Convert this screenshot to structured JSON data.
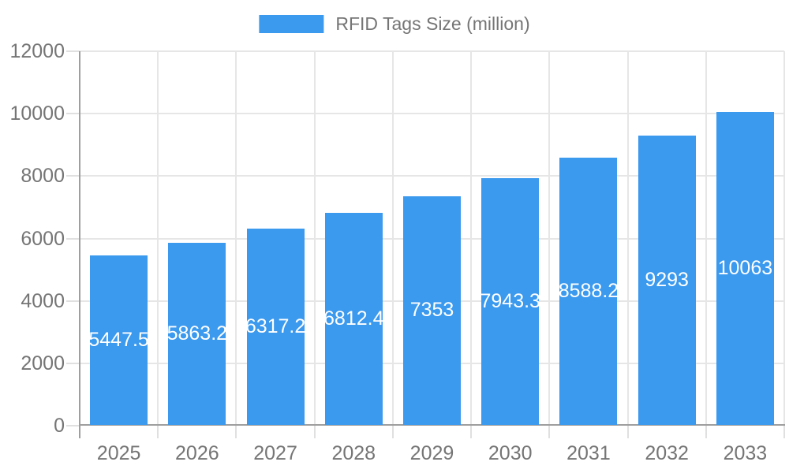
{
  "chart_data": {
    "type": "bar",
    "title": "RFID Tags Size (million)",
    "categories": [
      "2025",
      "2026",
      "2027",
      "2028",
      "2029",
      "2030",
      "2031",
      "2032",
      "2033"
    ],
    "series": [
      {
        "name": "RFID Tags Size (million)",
        "values": [
          5447.5,
          5863.2,
          6317.2,
          6812.4,
          7353,
          7943.3,
          8588.2,
          9293,
          10063
        ]
      }
    ],
    "xlabel": "",
    "ylabel": "",
    "ylim": [
      0,
      12000
    ],
    "yticks": [
      0,
      2000,
      4000,
      6000,
      8000,
      10000,
      12000
    ],
    "grid": true,
    "legend_position": "top",
    "value_label_position": "inside-center"
  },
  "colors": {
    "bar": "#3b99ee",
    "grid": "#e6e6e6",
    "tick": "#e0e0e0",
    "axis": "#9e9e9e",
    "text": "#757575",
    "value_label": "#ffffff",
    "background": "#ffffff"
  }
}
